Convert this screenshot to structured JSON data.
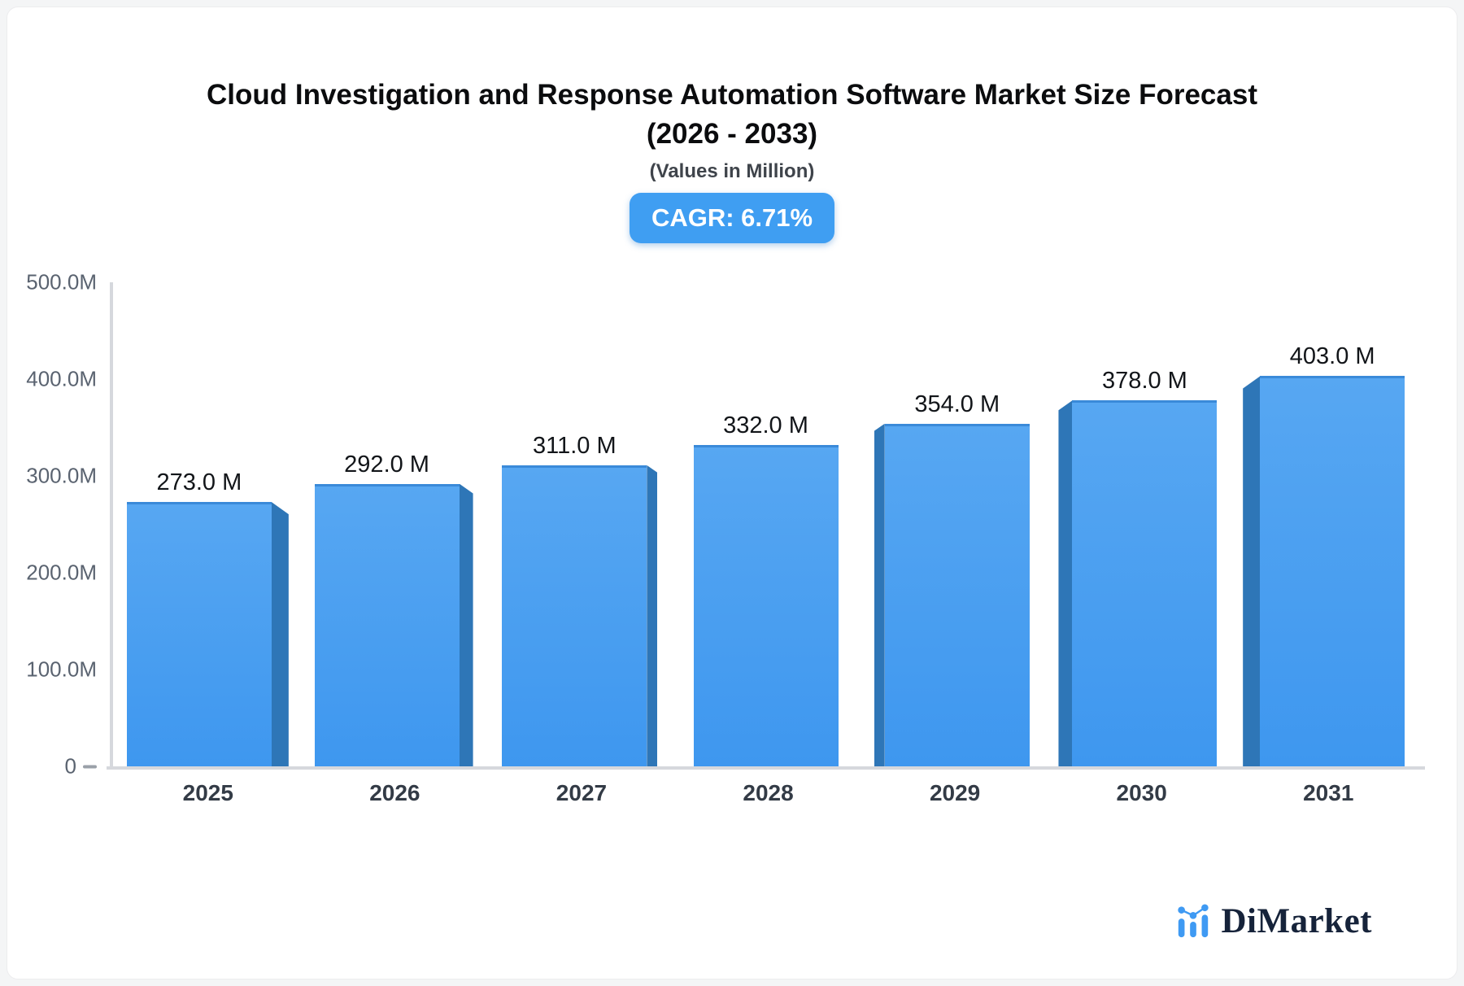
{
  "header": {
    "title_line1": "Cloud Investigation and Response Automation Software Market Size Forecast",
    "title_line2": "(2026 - 2033)",
    "subtitle": "(Values in Million)",
    "cagr_badge": "CAGR: 6.71%"
  },
  "chart_data": {
    "type": "bar",
    "title": "Cloud Investigation and Response Automation Software Market Size Forecast (2026 - 2033)",
    "subtitle": "(Values in Million)",
    "cagr_pct": 6.71,
    "categories": [
      "2025",
      "2026",
      "2027",
      "2028",
      "2029",
      "2030",
      "2031"
    ],
    "values": [
      273,
      292,
      311,
      332,
      354,
      378,
      403
    ],
    "value_labels": [
      "273.0 M",
      "292.0 M",
      "311.0 M",
      "332.0 M",
      "354.0 M",
      "378.0 M",
      "403.0 M"
    ],
    "unit": "Million",
    "xlabel": "",
    "ylabel": "",
    "ylim": [
      0,
      500
    ],
    "y_ticks": [
      "500.0M",
      "400.0M",
      "300.0M",
      "200.0M",
      "100.0M",
      "0"
    ],
    "grid": false,
    "legend": false,
    "bar_color_top": "#57a7f2",
    "bar_color_bottom": "#3e97ef",
    "bar_side_color": "#2e76b7",
    "axis_color": "#d6d8dd"
  },
  "branding": {
    "logo_text": "DiMarket",
    "logo_icon": "mini-bar-line-chart",
    "logo_blue": "#3f9af3",
    "logo_navy": "#16233a"
  }
}
